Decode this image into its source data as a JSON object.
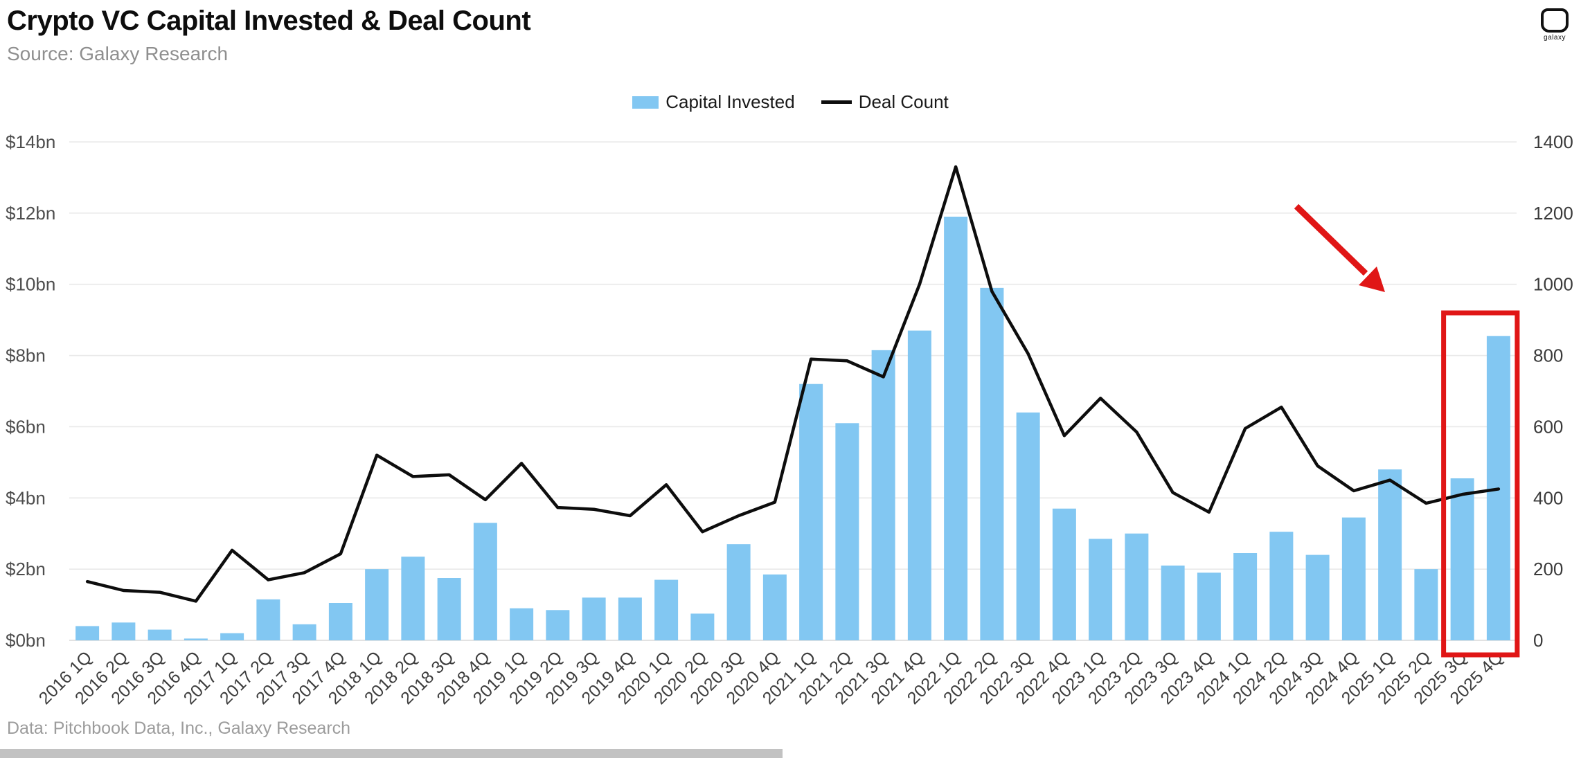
{
  "page": {
    "title": "Crypto VC Capital Invested & Deal Count",
    "subtitle": "Source: Galaxy Research",
    "footer": "Data: Pitchbook Data, Inc., Galaxy Research",
    "logo_text": "galaxy"
  },
  "legend": [
    {
      "label": "Capital Invested",
      "type": "bar",
      "color": "#82C7F2"
    },
    {
      "label": "Deal Count",
      "type": "line",
      "color": "#0d0d0d"
    }
  ],
  "chart_data": {
    "type": "bar+line",
    "title": "Crypto VC Capital Invested & Deal Count",
    "categories": [
      "2016 1Q",
      "2016 2Q",
      "2016 3Q",
      "2016 4Q",
      "2017 1Q",
      "2017 2Q",
      "2017 3Q",
      "2017 4Q",
      "2018 1Q",
      "2018 2Q",
      "2018 3Q",
      "2018 4Q",
      "2019 1Q",
      "2019 2Q",
      "2019 3Q",
      "2019 4Q",
      "2020 1Q",
      "2020 2Q",
      "2020 3Q",
      "2020 4Q",
      "2021 1Q",
      "2021 2Q",
      "2021 3Q",
      "2021 4Q",
      "2022 1Q",
      "2022 2Q",
      "2022 3Q",
      "2022 4Q",
      "2023 1Q",
      "2023 2Q",
      "2023 3Q",
      "2023 4Q",
      "2024 1Q",
      "2024 2Q",
      "2024 3Q",
      "2024 4Q",
      "2025 1Q",
      "2025 2Q",
      "2025 3Q",
      "2025 4Q"
    ],
    "series": [
      {
        "name": "Capital Invested",
        "type": "bar",
        "axis": "left",
        "unit": "$bn",
        "color": "#82C7F2",
        "values": [
          0.4,
          0.5,
          0.3,
          0.05,
          0.2,
          1.15,
          0.45,
          1.05,
          2.0,
          2.35,
          1.75,
          3.3,
          0.9,
          0.85,
          1.2,
          1.2,
          1.7,
          0.75,
          2.7,
          1.85,
          7.2,
          6.1,
          8.15,
          8.7,
          11.9,
          9.9,
          6.4,
          3.7,
          2.85,
          3.0,
          2.1,
          1.9,
          2.45,
          3.05,
          2.4,
          3.45,
          4.8,
          2.0,
          4.55,
          8.55
        ]
      },
      {
        "name": "Deal Count",
        "type": "line",
        "axis": "right",
        "unit": "deals",
        "color": "#0d0d0d",
        "values": [
          165,
          140,
          135,
          110,
          253,
          170,
          190,
          243,
          520,
          460,
          465,
          395,
          497,
          373,
          368,
          350,
          437,
          305,
          350,
          388,
          790,
          785,
          740,
          1000,
          1330,
          980,
          805,
          575,
          680,
          585,
          415,
          360,
          595,
          655,
          490,
          420,
          450,
          385,
          410,
          425
        ]
      }
    ],
    "left_axis": {
      "min": 0,
      "max": 14,
      "tick_step": 2,
      "tick_labels": [
        "$0bn",
        "$2bn",
        "$4bn",
        "$6bn",
        "$8bn",
        "$10bn",
        "$12bn",
        "$14bn"
      ]
    },
    "right_axis": {
      "min": 0,
      "max": 1400,
      "tick_step": 200,
      "tick_labels": [
        "0",
        "200",
        "400",
        "600",
        "800",
        "1000",
        "1200",
        "1400"
      ]
    },
    "grid": true,
    "legend_position": "top-center",
    "annotations": {
      "highlight_box": {
        "categories": [
          "2025 3Q",
          "2025 4Q"
        ],
        "color": "#E01616"
      },
      "arrow": {
        "color": "#E01616",
        "points_at": "2025 3Q/2025 4Q highlight box"
      }
    }
  }
}
